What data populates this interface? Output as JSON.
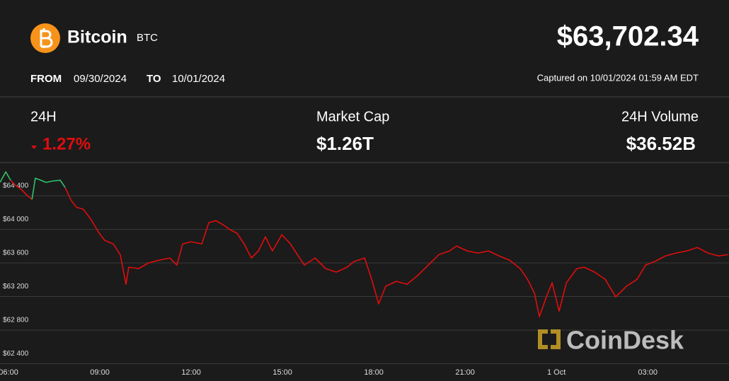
{
  "header": {
    "name": "Bitcoin",
    "symbol": "BTC",
    "price": "$63,702.34",
    "from_label": "FROM",
    "from_date": "09/30/2024",
    "to_label": "TO",
    "to_date": "10/01/2024",
    "captured": "Captured on 10/01/2024 01:59 AM EDT"
  },
  "stats": [
    {
      "label": "24H",
      "value": "1.27%"
    },
    {
      "label": "Market Cap",
      "value": "$1.26T"
    },
    {
      "label": "24H Volume",
      "value": "$36.52B"
    }
  ],
  "watermark": "CoinDesk",
  "chart_data": {
    "type": "line",
    "xlim": [
      5.72,
      29.67
    ],
    "xticks": [
      {
        "value": 6,
        "label": "06:00"
      },
      {
        "value": 9,
        "label": "09:00"
      },
      {
        "value": 12,
        "label": "12:00"
      },
      {
        "value": 15,
        "label": "15:00"
      },
      {
        "value": 18,
        "label": "18:00"
      },
      {
        "value": 21,
        "label": "21:00"
      },
      {
        "value": 24,
        "label": "1 Oct"
      },
      {
        "value": 27,
        "label": "03:00"
      }
    ],
    "ylim": [
      62354,
      64796
    ],
    "yticks": [
      {
        "value": 62400,
        "label": "$62 400"
      },
      {
        "value": 62800,
        "label": "$62 800"
      },
      {
        "value": 63200,
        "label": "$63 200"
      },
      {
        "value": 63600,
        "label": "$63 600"
      },
      {
        "value": 64000,
        "label": "$64 000"
      },
      {
        "value": 64400,
        "label": "$64 400"
      }
    ],
    "grid": true,
    "series": [
      {
        "color": "#2fc36a",
        "x": [
          5.72,
          5.91,
          6.07
        ],
        "values": [
          64560,
          64686,
          64585
        ]
      },
      {
        "color": "#e00d0d",
        "x": [
          6.07,
          6.23,
          6.42,
          6.65,
          6.77
        ],
        "values": [
          64585,
          64526,
          64476,
          64392,
          64358
        ]
      },
      {
        "color": "#2fc36a",
        "x": [
          6.77,
          6.88,
          7.07,
          7.23,
          7.46,
          7.7,
          7.86
        ],
        "values": [
          64358,
          64610,
          64585,
          64560,
          64577,
          64585,
          64500
        ]
      },
      {
        "color": "#e00d0d",
        "x": [
          7.86,
          8.05,
          8.23,
          8.46,
          8.7,
          8.98,
          9.16,
          9.44,
          9.67,
          9.86,
          9.95,
          10.27,
          10.6,
          10.95,
          11.3,
          11.53,
          11.72,
          12.0,
          12.35,
          12.58,
          12.81,
          13.05,
          13.28,
          13.51,
          13.74,
          13.98,
          14.21,
          14.44,
          14.67,
          14.98,
          15.26,
          15.49,
          15.72,
          16.07,
          16.42,
          16.77,
          17.12,
          17.35,
          17.7,
          17.93,
          18.16,
          18.39,
          18.74,
          19.09,
          19.44,
          19.79,
          20.14,
          20.49,
          20.72,
          21.07,
          21.42,
          21.77,
          22.12,
          22.46,
          22.81,
          23.05,
          23.28,
          23.44,
          23.67,
          23.86,
          24.09,
          24.33,
          24.67,
          24.91,
          25.26,
          25.6,
          25.95,
          26.3,
          26.65,
          26.93,
          27.23,
          27.58,
          27.93,
          28.28,
          28.63,
          28.98,
          29.33,
          29.63
        ],
        "values": [
          64500,
          64350,
          64265,
          64240,
          64122,
          63954,
          63870,
          63827,
          63700,
          63347,
          63550,
          63533,
          63600,
          63634,
          63659,
          63575,
          63827,
          63853,
          63827,
          64080,
          64105,
          64055,
          63996,
          63954,
          63827,
          63659,
          63743,
          63912,
          63743,
          63937,
          63827,
          63700,
          63575,
          63659,
          63533,
          63491,
          63550,
          63617,
          63659,
          63406,
          63112,
          63322,
          63381,
          63347,
          63449,
          63575,
          63700,
          63743,
          63802,
          63743,
          63718,
          63743,
          63684,
          63634,
          63533,
          63406,
          63238,
          62960,
          63196,
          63364,
          63027,
          63364,
          63533,
          63550,
          63491,
          63406,
          63196,
          63322,
          63406,
          63575,
          63617,
          63684,
          63718,
          63743,
          63785,
          63718,
          63684,
          63700
        ]
      }
    ]
  }
}
